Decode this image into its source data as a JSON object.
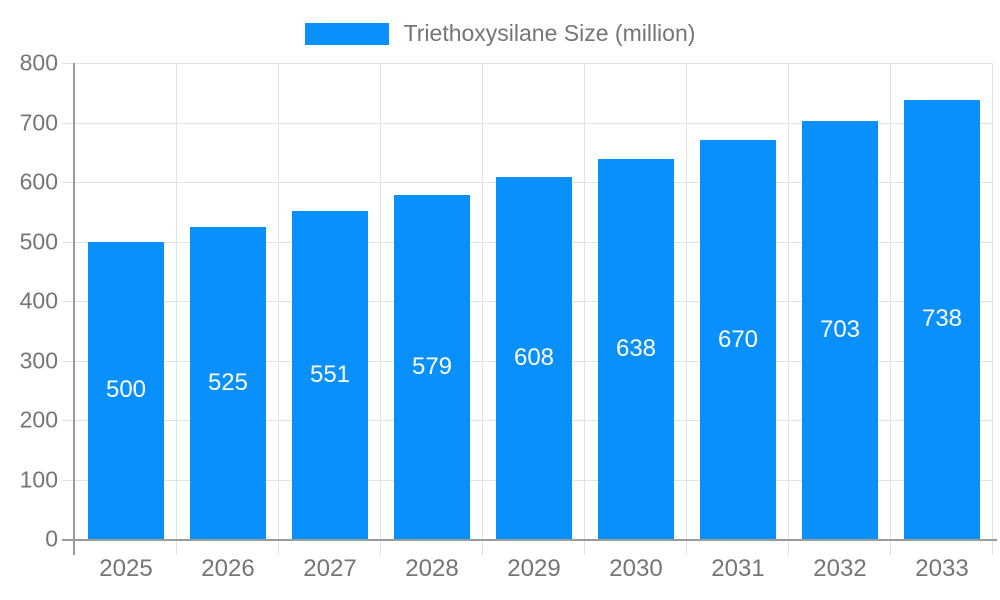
{
  "legend": {
    "label": "Triethoxysilane Size (million)"
  },
  "chart_data": {
    "type": "bar",
    "title": "",
    "series_name": "Triethoxysilane Size (million)",
    "categories": [
      "2025",
      "2026",
      "2027",
      "2028",
      "2029",
      "2030",
      "2031",
      "2032",
      "2033"
    ],
    "values": [
      500,
      525,
      551,
      579,
      608,
      638,
      670,
      703,
      738
    ],
    "value_labels_shown": true,
    "xlabel": "",
    "ylabel": "",
    "ylim": [
      0,
      800
    ],
    "y_tick_step": 100,
    "y_tick_labels": [
      "0",
      "100",
      "200",
      "300",
      "400",
      "500",
      "600",
      "700",
      "800"
    ],
    "grid": true,
    "legend_position": "top-center"
  },
  "colors": {
    "background": "#ffffff",
    "bar": "#0990fa",
    "value_label": "#ffffff",
    "axis_line": "#9b9b9b",
    "gridline": "#e3e3e3",
    "tick_label": "#757575"
  }
}
